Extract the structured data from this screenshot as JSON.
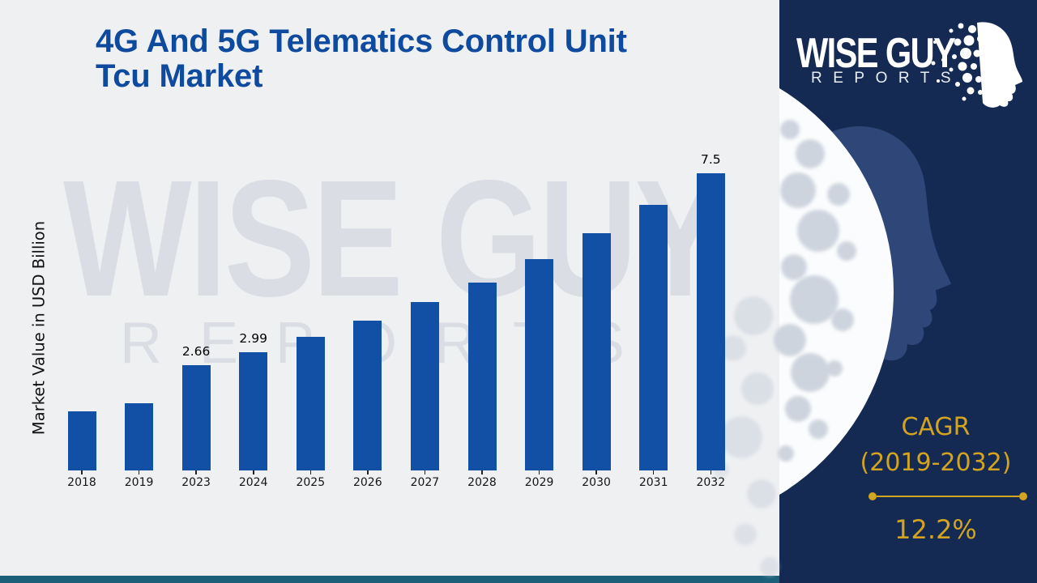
{
  "page": {
    "title": "4G And 5G Telematics Control Unit Tcu Market"
  },
  "watermark": {
    "line1": "WISE GUY",
    "line2": "REPORTS"
  },
  "brand": {
    "name_line1": "WISE GUY",
    "name_line2": "REPORTS"
  },
  "cagr": {
    "label": "CAGR",
    "range": "(2019-2032)",
    "value": "12.2%"
  },
  "colors": {
    "bar_blue": "#1150a5",
    "title_blue": "#0e4a9e",
    "navy": "#142a52",
    "face_blue": "#2e4778",
    "gold": "#d2a41f",
    "teal": "#1c5f78",
    "watermark_gray": "#d6dae1",
    "background": "#eff0f2"
  },
  "chart_data": {
    "type": "bar",
    "title": "4G And 5G Telematics Control Unit Tcu Market",
    "xlabel": "",
    "ylabel": "Market Value in USD Billion",
    "unit": "USD Billion",
    "categories": [
      "2018",
      "2019",
      "2023",
      "2024",
      "2025",
      "2026",
      "2027",
      "2028",
      "2029",
      "2030",
      "2031",
      "2032"
    ],
    "values": [
      1.5,
      1.7,
      2.66,
      2.99,
      3.36,
      3.78,
      4.24,
      4.73,
      5.32,
      5.98,
      6.7,
      7.5
    ],
    "data_labels": {
      "2023": "2.66",
      "2024": "2.99",
      "2032": "7.5"
    },
    "ylim": [
      0,
      8.2
    ],
    "grid": false,
    "legend": "none",
    "bar_color": "#1150a5",
    "annotation": "CAGR (2019-2032) 12.2%"
  }
}
